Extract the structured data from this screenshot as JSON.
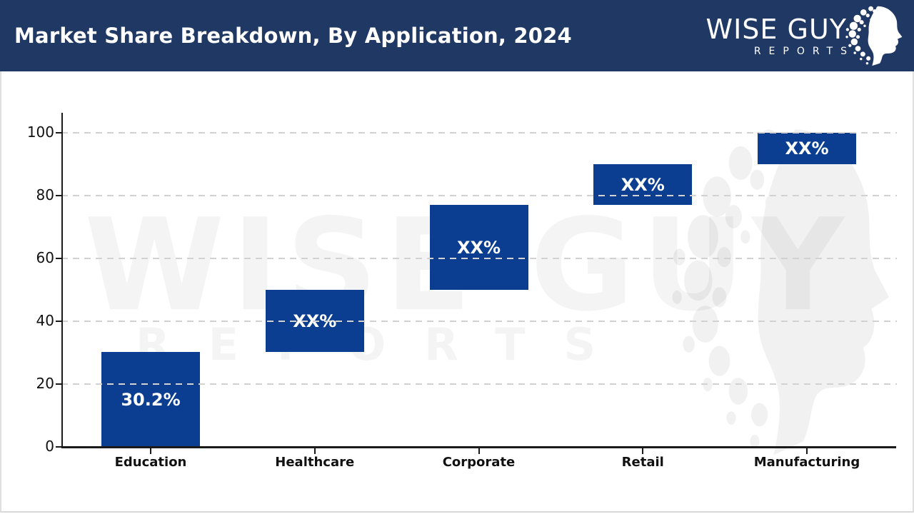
{
  "header": {
    "title": "Market Share Breakdown, By Application, 2024",
    "bg_color": "#203864",
    "logo": {
      "line1": "WISE GUY",
      "line2": "REPORTS"
    }
  },
  "watermark": {
    "line1": "WISE GUY",
    "line2": "REPORTS"
  },
  "icons": {
    "logo_head": "head-profile-dots-icon"
  },
  "chart_data": {
    "type": "bar",
    "subtype": "waterfall-floating-bars",
    "title": "Market Share Breakdown, By Application, 2024",
    "categories": [
      "Education",
      "Healthcare",
      "Corporate",
      "Retail",
      "Manufacturing"
    ],
    "segments": [
      {
        "category": "Education",
        "start": 0,
        "end": 30.2,
        "label": "30.2%"
      },
      {
        "category": "Healthcare",
        "start": 30.2,
        "end": 50,
        "label": "XX%"
      },
      {
        "category": "Corporate",
        "start": 50,
        "end": 77,
        "label": "XX%"
      },
      {
        "category": "Retail",
        "start": 77,
        "end": 90,
        "label": "XX%"
      },
      {
        "category": "Manufacturing",
        "start": 90,
        "end": 100,
        "label": "XX%"
      }
    ],
    "yticks": [
      0,
      20,
      40,
      60,
      80,
      100
    ],
    "ylim": [
      0,
      106
    ],
    "xlabel": "",
    "ylabel": "",
    "bar_color": "#0b3d91",
    "grid": "horizontal-dashed-above-bars",
    "gridline_color": "#d2d2d2",
    "legend": "none"
  }
}
